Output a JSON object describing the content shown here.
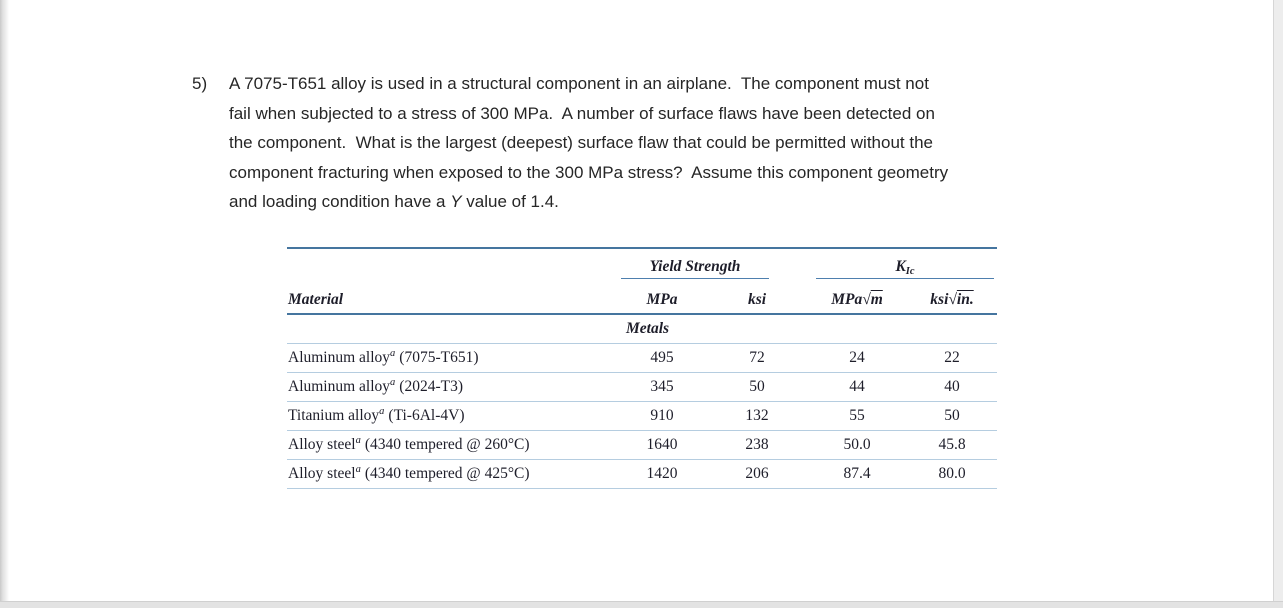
{
  "problem": {
    "number_label": "5)",
    "lines": [
      [
        {
          "t": "A 7075-T651 alloy is used in a structural component in an airplane.  The component must not"
        }
      ],
      [
        {
          "t": "fail when subjected to a stress of 300 MPa.  A number of surface flaws have been detected on"
        }
      ],
      [
        {
          "t": "the component.  What is the largest (deepest) surface flaw that could be permitted without the"
        }
      ],
      [
        {
          "t": "component fracturing when exposed to the 300 MPa stress?  Assume this component geometry"
        }
      ],
      [
        {
          "t": "and loading condition have a "
        },
        {
          "t": "Y",
          "i": true
        },
        {
          "t": " value of 1.4."
        }
      ]
    ]
  },
  "table": {
    "headers": {
      "material": "Material",
      "yield_strength": "Yield Strength",
      "kic_base": "K",
      "kic_sub": "Ic",
      "unit_mpa": "MPa",
      "unit_ksi": "ksi",
      "radical": "√",
      "unit_kic_mpa_prefix": "MPa",
      "unit_kic_mpa_radicand": "m",
      "unit_kic_ksi_prefix": "ksi",
      "unit_kic_ksi_radicand": "in."
    },
    "section_label": "Metals",
    "rows": [
      {
        "material": "Aluminum alloy",
        "sup": "a",
        "spec": "(7075-T651)",
        "yield_mpa": "495",
        "yield_ksi": "72",
        "kic_mpa": "24",
        "kic_ksi": "22"
      },
      {
        "material": "Aluminum alloy",
        "sup": "a",
        "spec": "(2024-T3)",
        "yield_mpa": "345",
        "yield_ksi": "50",
        "kic_mpa": "44",
        "kic_ksi": "40"
      },
      {
        "material": "Titanium alloy",
        "sup": "a",
        "spec": "(Ti-6Al-4V)",
        "yield_mpa": "910",
        "yield_ksi": "132",
        "kic_mpa": "55",
        "kic_ksi": "50"
      },
      {
        "material": "Alloy steel",
        "sup": "a",
        "spec": "(4340 tempered @ 260°C)",
        "yield_mpa": "1640",
        "yield_ksi": "238",
        "kic_mpa": "50.0",
        "kic_ksi": "45.8"
      },
      {
        "material": "Alloy steel",
        "sup": "a",
        "spec": "(4340 tempered @ 425°C)",
        "yield_mpa": "1420",
        "yield_ksi": "206",
        "kic_mpa": "87.4",
        "kic_ksi": "80.0"
      }
    ]
  },
  "colors": {
    "table_rule_strong": "#45759f",
    "table_rule_medium": "#4e7fae",
    "table_rule_light": "#b5cde0",
    "text": "#262626",
    "table_text": "#1e1e2a",
    "gutter": "#e3e3e3"
  }
}
